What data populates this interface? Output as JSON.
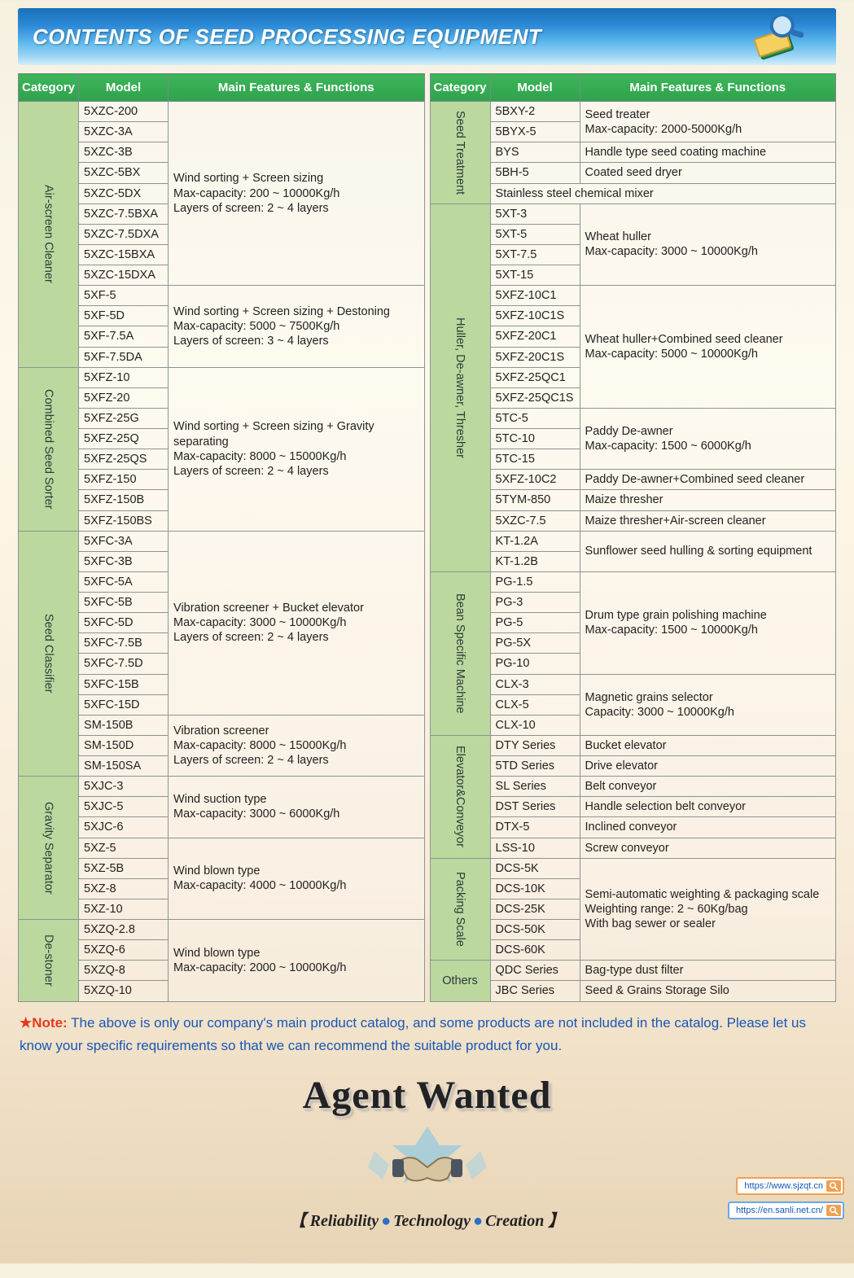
{
  "header": {
    "title": "CONTENTS OF SEED PROCESSING EQUIPMENT"
  },
  "columns": {
    "category": "Category",
    "model": "Model",
    "features": "Main Features & Functions"
  },
  "colors": {
    "header_gradient_top": "#1a6fb8",
    "header_gradient_bottom": "#d6eef9",
    "th_top": "#3cb65a",
    "th_bottom": "#2fa14c",
    "cat_bg": "#bcd89e",
    "border": "#8a9595",
    "note_text": "#1857b5",
    "note_star": "#e33a1a"
  },
  "left": [
    {
      "category": "Air-screen Cleaner",
      "groups": [
        {
          "feature": "Wind sorting + Screen sizing\nMax-capacity: 200 ~ 10000Kg/h\nLayers of screen: 2 ~ 4 layers",
          "models": [
            "5XZC-200",
            "5XZC-3A",
            "5XZC-3B",
            "5XZC-5BX",
            "5XZC-5DX",
            "5XZC-7.5BXA",
            "5XZC-7.5DXA",
            "5XZC-15BXA",
            "5XZC-15DXA"
          ]
        },
        {
          "feature": "Wind sorting + Screen sizing + Destoning\nMax-capacity: 5000 ~ 7500Kg/h\nLayers of screen: 3 ~ 4 layers",
          "models": [
            "5XF-5",
            "5XF-5D",
            "5XF-7.5A",
            "5XF-7.5DA"
          ]
        }
      ]
    },
    {
      "category": "Combined Seed Sorter",
      "groups": [
        {
          "feature": "Wind sorting + Screen sizing + Gravity separating\nMax-capacity: 8000 ~ 15000Kg/h\nLayers of screen: 2 ~ 4 layers",
          "models": [
            "5XFZ-10",
            "5XFZ-20",
            "5XFZ-25G",
            "5XFZ-25Q",
            "5XFZ-25QS",
            "5XFZ-150",
            "5XFZ-150B",
            "5XFZ-150BS"
          ]
        }
      ]
    },
    {
      "category": "Seed Classifier",
      "groups": [
        {
          "feature": "Vibration screener + Bucket elevator\nMax-capacity: 3000 ~ 10000Kg/h\nLayers of screen: 2 ~ 4 layers",
          "models": [
            "5XFC-3A",
            "5XFC-3B",
            "5XFC-5A",
            "5XFC-5B",
            "5XFC-5D",
            "5XFC-7.5B",
            "5XFC-7.5D",
            "5XFC-15B",
            "5XFC-15D"
          ]
        },
        {
          "feature": "Vibration screener\nMax-capacity: 8000 ~ 15000Kg/h\nLayers of screen: 2 ~ 4 layers",
          "models": [
            "SM-150B",
            "SM-150D",
            "SM-150SA"
          ]
        }
      ]
    },
    {
      "category": "Gravity Separator",
      "groups": [
        {
          "feature": "Wind suction type\nMax-capacity: 3000 ~ 6000Kg/h",
          "models": [
            "5XJC-3",
            "5XJC-5",
            "5XJC-6"
          ]
        },
        {
          "feature": "Wind blown type\nMax-capacity: 4000 ~ 10000Kg/h",
          "models": [
            "5XZ-5",
            "5XZ-5B",
            "5XZ-8",
            "5XZ-10"
          ]
        }
      ]
    },
    {
      "category": "De-stoner",
      "groups": [
        {
          "feature": "Wind blown type\nMax-capacity: 2000 ~ 10000Kg/h",
          "models": [
            "5XZQ-2.8",
            "5XZQ-6",
            "5XZQ-8",
            "5XZQ-10"
          ]
        }
      ]
    }
  ],
  "right": [
    {
      "category": "Seed Treatment",
      "groups": [
        {
          "feature": "Seed treater\nMax-capacity: 2000-5000Kg/h",
          "models": [
            "5BXY-2",
            "5BYX-5"
          ]
        },
        {
          "feature": "Handle type seed coating machine",
          "models": [
            "BYS"
          ]
        },
        {
          "feature": "Coated seed dryer",
          "models": [
            "5BH-5"
          ]
        },
        {
          "feature_span_model": "Stainless steel chemical mixer"
        }
      ]
    },
    {
      "category": "Huller, De-awner, Thresher",
      "groups": [
        {
          "feature": "Wheat huller\nMax-capacity: 3000 ~ 10000Kg/h",
          "models": [
            "5XT-3",
            "5XT-5",
            "5XT-7.5",
            "5XT-15"
          ]
        },
        {
          "feature": "Wheat huller+Combined seed cleaner\nMax-capacity: 5000 ~ 10000Kg/h",
          "models": [
            "5XFZ-10C1",
            "5XFZ-10C1S",
            "5XFZ-20C1",
            "5XFZ-20C1S",
            "5XFZ-25QC1",
            "5XFZ-25QC1S"
          ]
        },
        {
          "feature": "Paddy De-awner\nMax-capacity:  1500 ~ 6000Kg/h",
          "models": [
            "5TC-5",
            "5TC-10",
            "5TC-15"
          ]
        },
        {
          "feature": "Paddy De-awner+Combined seed cleaner",
          "models": [
            "5XFZ-10C2"
          ]
        },
        {
          "feature": "Maize thresher",
          "models": [
            "5TYM-850"
          ]
        },
        {
          "feature": "Maize thresher+Air-screen cleaner",
          "models": [
            "5XZC-7.5"
          ]
        },
        {
          "feature": "Sunflower seed hulling & sorting equipment",
          "models": [
            "KT-1.2A",
            "KT-1.2B"
          ]
        }
      ]
    },
    {
      "category": "Bean Specific Machine",
      "groups": [
        {
          "feature": "Drum type grain polishing machine\nMax-capacity: 1500 ~ 10000Kg/h",
          "models": [
            "PG-1.5",
            "PG-3",
            "PG-5",
            "PG-5X",
            "PG-10"
          ]
        },
        {
          "feature": "Magnetic grains selector\nCapacity: 3000 ~ 10000Kg/h",
          "models": [
            "CLX-3",
            "CLX-5",
            "CLX-10"
          ]
        }
      ]
    },
    {
      "category": "Elevator&Conveyor",
      "groups": [
        {
          "feature": "Bucket elevator",
          "models": [
            "DTY Series"
          ]
        },
        {
          "feature": "Drive elevator",
          "models": [
            "5TD Series"
          ]
        },
        {
          "feature": "Belt conveyor",
          "models": [
            "SL Series"
          ]
        },
        {
          "feature": "Handle selection belt conveyor",
          "models": [
            "DST Series"
          ]
        },
        {
          "feature": "Inclined conveyor",
          "models": [
            "DTX-5"
          ]
        },
        {
          "feature": "Screw conveyor",
          "models": [
            "LSS-10"
          ]
        }
      ]
    },
    {
      "category": "Packing Scale",
      "groups": [
        {
          "feature": "Semi-automatic weighting & packaging scale\nWeighting range: 2 ~ 60Kg/bag\nWith bag sewer or sealer",
          "models": [
            "DCS-5K",
            "DCS-10K",
            "DCS-25K",
            "DCS-50K",
            "DCS-60K"
          ]
        }
      ]
    },
    {
      "category": "Others",
      "horizontal_label": true,
      "groups": [
        {
          "feature": "Bag-type dust filter",
          "models": [
            "QDC Series"
          ]
        },
        {
          "feature": "Seed & Grains Storage Silo",
          "models": [
            "JBC Series"
          ]
        }
      ]
    }
  ],
  "note": {
    "star": "★Note:",
    "text": " The above is only our company's main product catalog, and some products are not included in the catalog. Please let us know your specific requirements so that we can recommend the suitable product for you."
  },
  "agent": {
    "title": "Agent Wanted",
    "tagline_parts": [
      "【 Reliability",
      "Technology",
      "Creation 】"
    ]
  },
  "urls": {
    "u1": "https://www.sjzqt.cn",
    "u2": "https://en.sanli.net.cn/"
  }
}
